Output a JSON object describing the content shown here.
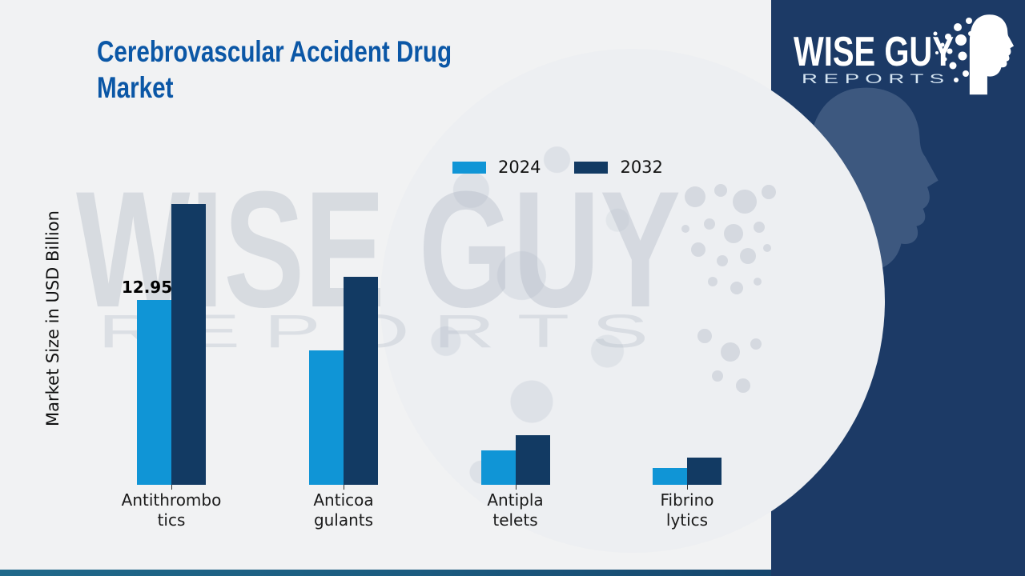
{
  "page": {
    "background": "#f1f2f3",
    "accent_navy": "#1c3a66",
    "accent_blue": "#1095d6",
    "title_color": "#0b57a6"
  },
  "header": {
    "title": "Cerebrovascular Accident Drug Market",
    "title_lines": [
      "Cerebrovascular Accident Drug",
      "Market"
    ]
  },
  "branding": {
    "logo": {
      "line1": "WISE GUY",
      "line2": "R E P O R T S"
    },
    "watermark": {
      "line1": "WISE GUY",
      "line2": "R E P O R T S"
    }
  },
  "chart_data": {
    "type": "bar",
    "title": "Cerebrovascular Accident Drug Market",
    "xlabel": "",
    "ylabel": "Market Size in USD Billion",
    "categories": [
      "Antithrombotics",
      "Anticoagulants",
      "Antiplatelets",
      "Fibrinolytics"
    ],
    "tick_labels": [
      [
        "Antithrombo",
        "tics"
      ],
      [
        "Anticoa",
        "gulants"
      ],
      [
        "Antipla",
        "telets"
      ],
      [
        "Fibrino",
        "lytics"
      ]
    ],
    "series": [
      {
        "name": "2024",
        "color": "#1095d6",
        "values": [
          12.95,
          9.4,
          2.4,
          1.2
        ]
      },
      {
        "name": "2032",
        "color": "#123a63",
        "values": [
          19.7,
          14.6,
          3.5,
          1.9
        ]
      }
    ],
    "annotations": [
      {
        "series": "2024",
        "category_index": 0,
        "text": "12.95"
      }
    ],
    "ylim": [
      0,
      21
    ],
    "grid": false,
    "axis_lines": false,
    "legend_position": "top-center"
  }
}
